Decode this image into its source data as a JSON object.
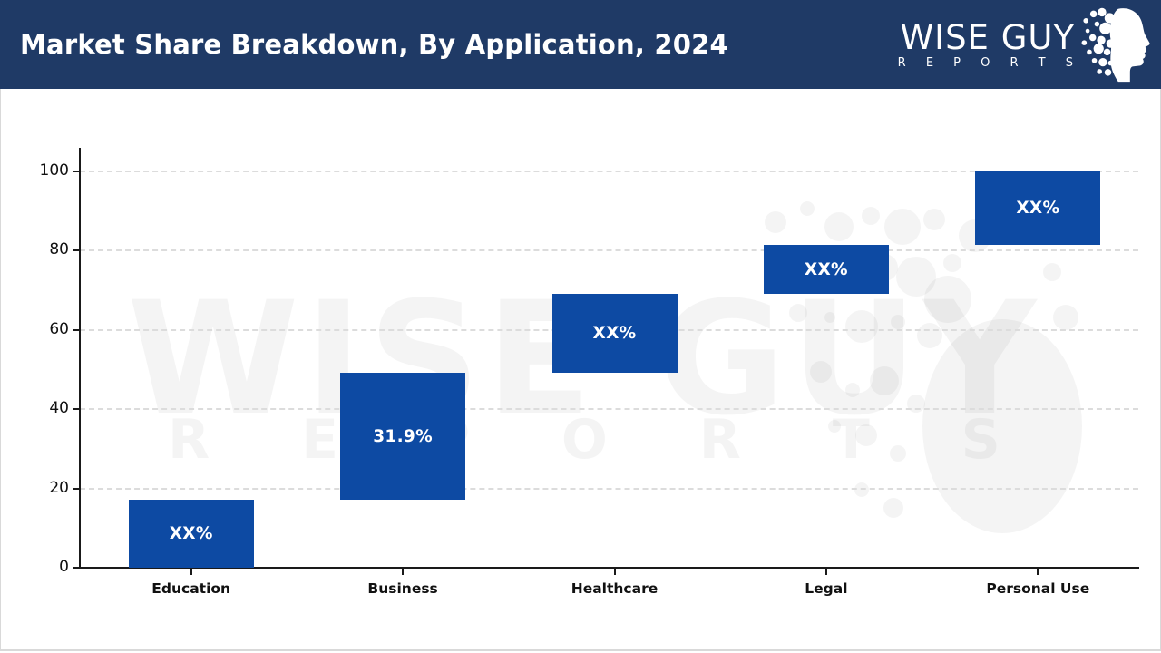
{
  "header": {
    "title": "Market Share Breakdown, By Application, 2024",
    "logo": {
      "line1": "WISE GUY",
      "line2": "R E P O R T S"
    }
  },
  "watermark": {
    "line1": "WISE GUY",
    "line2": "R E P O R T S"
  },
  "colors": {
    "header_bg": "#1f3a66",
    "bar_blue": "#0d4aa3",
    "grid_gray": "#dcdcdc",
    "axis_black": "#1a1a1a",
    "bar_label_white": "#ffffff",
    "watermark_gray": "rgba(0,0,0,0.045)"
  },
  "chart_data": {
    "type": "bar",
    "subtype": "waterfall-floating-bars",
    "title": "Market Share Breakdown, By Application, 2024",
    "xlabel": "",
    "ylabel": "",
    "ylim": [
      0,
      100
    ],
    "yticks": [
      0,
      20,
      40,
      60,
      80,
      100
    ],
    "grid": "horizontal-dashed",
    "legend": "none",
    "categories": [
      "Education",
      "Business",
      "Healthcare",
      "Legal",
      "Personal Use"
    ],
    "segments": [
      {
        "category": "Education",
        "start": 0,
        "end": 17.2,
        "label": "XX%"
      },
      {
        "category": "Business",
        "start": 17.2,
        "end": 49.1,
        "label": "31.9%"
      },
      {
        "category": "Healthcare",
        "start": 49.1,
        "end": 69.0,
        "label": "XX%"
      },
      {
        "category": "Legal",
        "start": 69.0,
        "end": 81.5,
        "label": "XX%"
      },
      {
        "category": "Personal Use",
        "start": 81.5,
        "end": 100,
        "label": "XX%"
      }
    ]
  }
}
